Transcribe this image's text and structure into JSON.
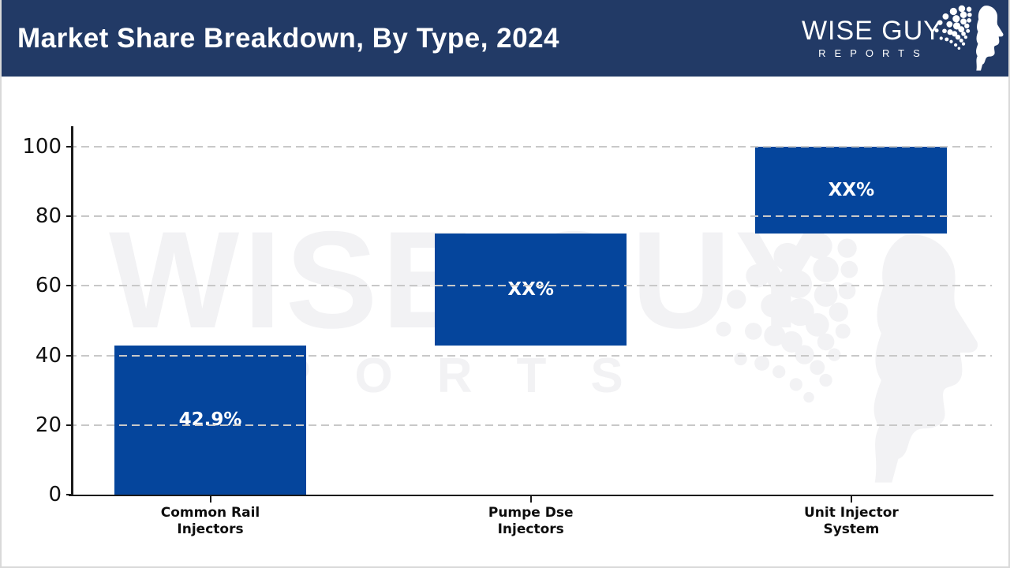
{
  "header": {
    "title": "Market Share Breakdown, By Type, 2024",
    "bg_color": "#223A66",
    "logo": {
      "wordmark": "WISE GUY",
      "subtext": "REPORTS"
    }
  },
  "watermark": {
    "wordmark": "WISE GUY",
    "subtext": "REPORTS"
  },
  "chart_data": {
    "type": "bar",
    "variant": "floating-segment-waterfall",
    "title": "Market Share Breakdown, By Type, 2024",
    "categories": [
      {
        "line1": "Common Rail",
        "line2": "Injectors"
      },
      {
        "line1": "Pumpe Dse",
        "line2": "Injectors"
      },
      {
        "line1": "Unit Injector",
        "line2": "System"
      }
    ],
    "segments": [
      {
        "category": "Common Rail Injectors",
        "start": 0,
        "end": 42.9,
        "label": "42.9%"
      },
      {
        "category": "Pumpe Dse Injectors",
        "start": 42.9,
        "end": 75,
        "label": "XX%"
      },
      {
        "category": "Unit Injector System",
        "start": 75,
        "end": 100,
        "label": "XX%"
      }
    ],
    "yticks": [
      0,
      20,
      40,
      60,
      80,
      100
    ],
    "ylim": [
      0,
      105.5
    ],
    "xlabel": "",
    "ylabel": "",
    "legend": "none",
    "grid": {
      "visible": true,
      "style": "dashed",
      "color": "#C8C8C8"
    },
    "bar_color": "#05459C",
    "bar_label_color": "#FFFFFF",
    "axis_color": "#1A1A1A",
    "tick_label_color": "#111111"
  }
}
